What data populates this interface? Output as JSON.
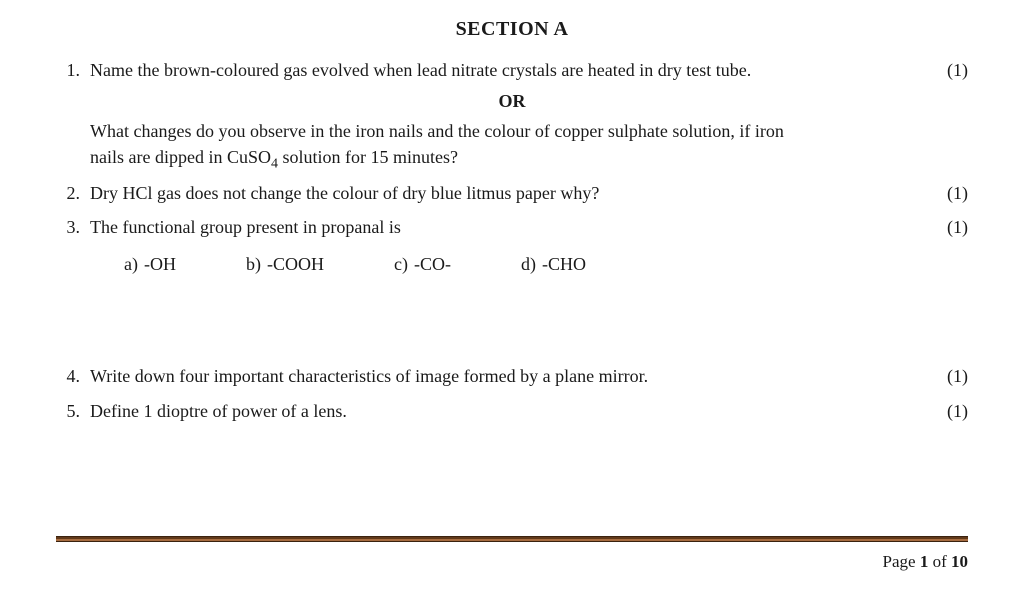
{
  "section_title": "SECTION A",
  "or_label": "OR",
  "q1": {
    "num": "1.",
    "text": "Name the brown-coloured gas evolved when lead nitrate crystals are heated in dry test tube.",
    "marks": "(1)",
    "alt_text_1": "What changes do you observe in the iron nails and the colour of copper sulphate solution, if iron",
    "alt_text_2a": "nails are dipped in CuSO",
    "alt_text_2b": "4",
    "alt_text_2c": " solution for 15 minutes?"
  },
  "q2": {
    "num": "2.",
    "text": "Dry HCl gas does not change the colour of dry blue litmus paper why?",
    "marks": "(1)"
  },
  "q3": {
    "num": "3.",
    "text": "The functional group present in propanal is",
    "marks": "(1)",
    "options": {
      "a_label": "a)",
      "a_val": "-OH",
      "b_label": "b)",
      "b_val": "-COOH",
      "c_label": "c)",
      "c_val": "-CO-",
      "d_label": "d)",
      "d_val": "-CHO"
    }
  },
  "q4": {
    "num": "4.",
    "text": "Write down four important characteristics of image formed by a plane mirror.",
    "marks": "(1)"
  },
  "q5": {
    "num": "5.",
    "text": "Define 1 dioptre of power of a lens.",
    "marks": "(1)"
  },
  "footer": {
    "page_label": "Page ",
    "page_current": "1",
    "page_of": " of ",
    "page_total": "10"
  }
}
